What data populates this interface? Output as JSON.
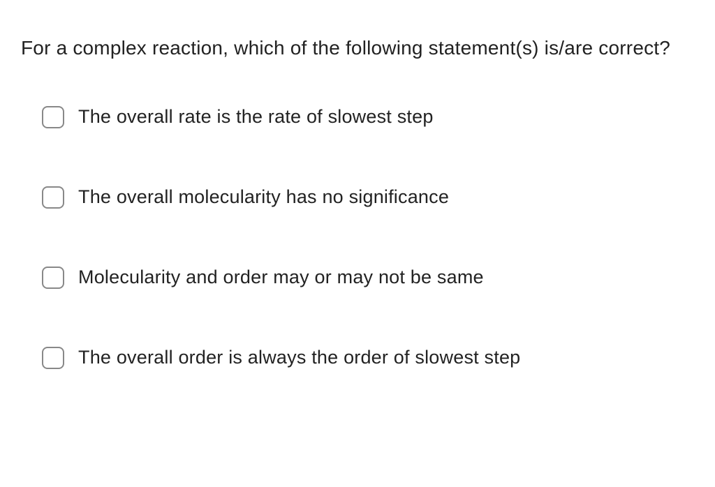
{
  "question": "For a complex reaction, which of the following statement(s) is/are correct?",
  "options": [
    {
      "label": "The overall rate is the rate of slowest step"
    },
    {
      "label": "The overall molecularity has no significance"
    },
    {
      "label": "Molecularity and order may or may not be same"
    },
    {
      "label": "The overall order is always the order of slowest step"
    }
  ],
  "colors": {
    "text": "#222222",
    "checkbox_border": "#888888",
    "background": "#ffffff"
  },
  "typography": {
    "question_fontsize": 28,
    "option_fontsize": 27
  }
}
